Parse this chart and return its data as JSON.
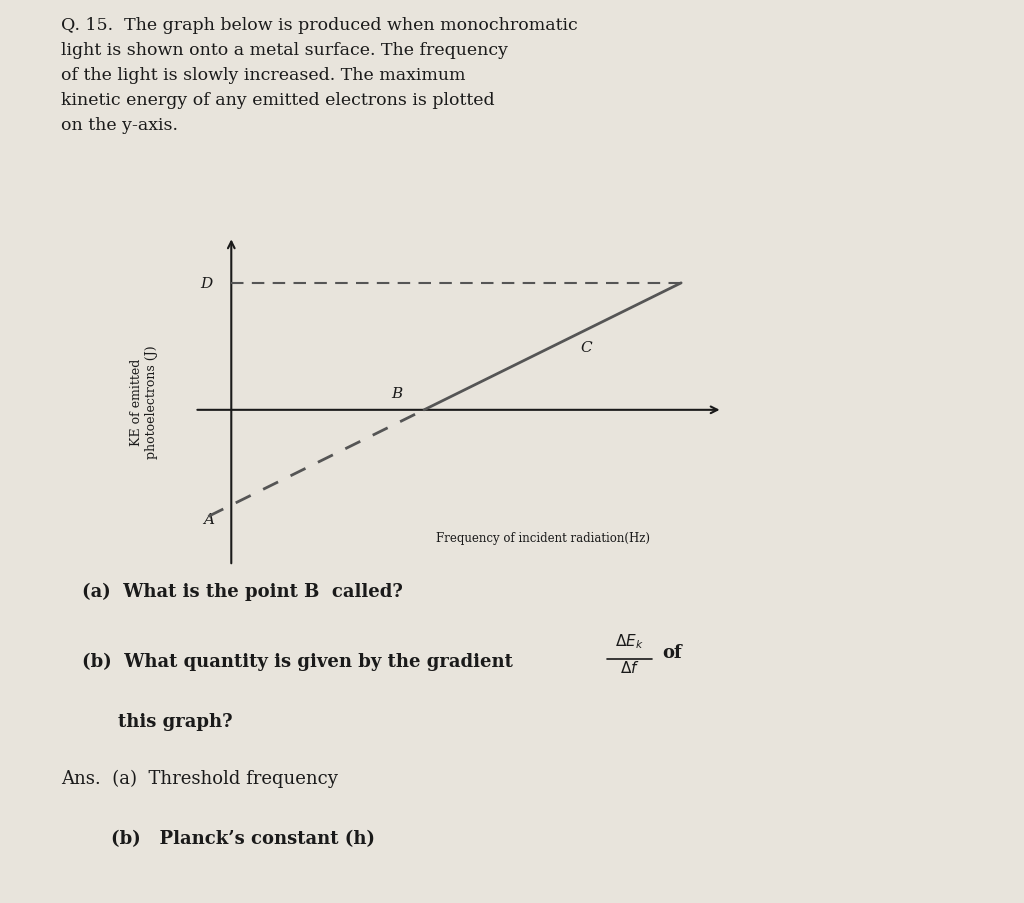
{
  "ylabel": "KE of emitted\nphotoelectrons (J)",
  "xlabel": "Frequency of incident radiation(Hz)",
  "background_color": "#e8e4dc",
  "text_color": "#1a1a1a",
  "line_color": "#555555",
  "graph_bg": "#e8e4dc",
  "point_A_label": "A",
  "point_B_label": "B",
  "point_C_label": "C",
  "point_D_label": "D",
  "q1": "(a)  What is the point B  called?",
  "q2_part1": "(b)  What quantity is given by the gradient",
  "q2_part2": "of",
  "q2_part3": "      this graph?",
  "ans1": "Ans.  (a)  Threshold frequency",
  "ans2_prefix": "        (b)   Planck’s constant (h)",
  "top_text_line1": "Q. 15.  The graph below is produced when monochromatic",
  "top_text_line2": "light is shown onto a metal surface. The frequency",
  "top_text_line3": "of the light is slowly increased. The maximum",
  "top_text_line4": "kinetic energy of any emitted electrons is plotted",
  "top_text_line5": "on the y-axis.",
  "figsize": [
    10.24,
    9.04
  ],
  "dpi": 100
}
